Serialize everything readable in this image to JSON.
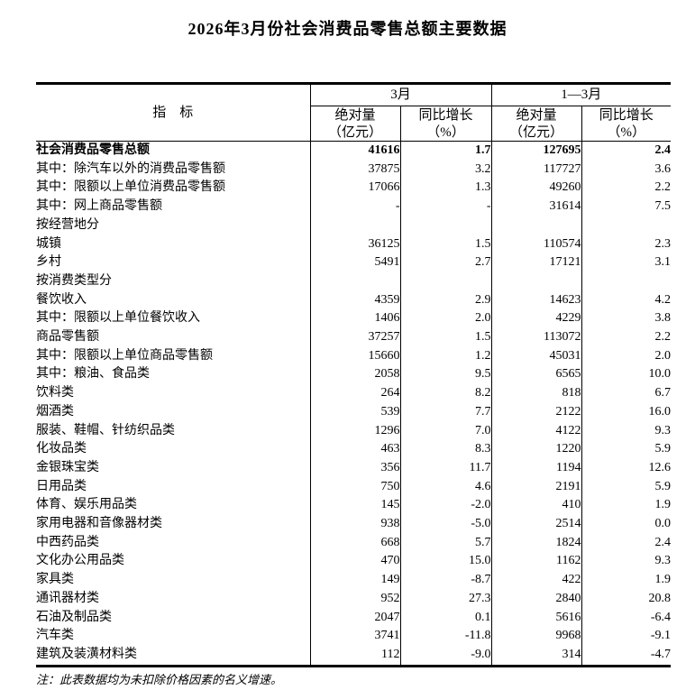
{
  "title": "2026年3月份社会消费品零售总额主要数据",
  "note": "注：此表数据均为未扣除价格因素的名义增速。",
  "table": {
    "header": {
      "indicator": "指　标",
      "march": "3月",
      "jan_mar": "1—3月",
      "abs_label": "绝对量",
      "abs_unit": "（亿元）",
      "yoy_label": "同比增长",
      "yoy_unit": "（%）"
    },
    "rows": [
      {
        "label": "社会消费品零售总额",
        "indent": 0,
        "bold": true,
        "m_abs": "41616",
        "m_yoy": "1.7",
        "q_abs": "127695",
        "q_yoy": "2.4"
      },
      {
        "label": "其中：除汽车以外的消费品零售额",
        "indent": 1,
        "bold": false,
        "m_abs": "37875",
        "m_yoy": "3.2",
        "q_abs": "117727",
        "q_yoy": "3.6"
      },
      {
        "label": "其中：限额以上单位消费品零售额",
        "indent": 1,
        "bold": false,
        "m_abs": "17066",
        "m_yoy": "1.3",
        "q_abs": "49260",
        "q_yoy": "2.2"
      },
      {
        "label": "其中：网上商品零售额",
        "indent": 1,
        "bold": false,
        "m_abs": "-",
        "m_yoy": "-",
        "q_abs": "31614",
        "q_yoy": "7.5"
      },
      {
        "label": "按经营地分",
        "indent": 0,
        "bold": false,
        "m_abs": "",
        "m_yoy": "",
        "q_abs": "",
        "q_yoy": ""
      },
      {
        "label": "城镇",
        "indent": 1,
        "bold": false,
        "m_abs": "36125",
        "m_yoy": "1.5",
        "q_abs": "110574",
        "q_yoy": "2.3"
      },
      {
        "label": "乡村",
        "indent": 1,
        "bold": false,
        "m_abs": "5491",
        "m_yoy": "2.7",
        "q_abs": "17121",
        "q_yoy": "3.1"
      },
      {
        "label": "按消费类型分",
        "indent": 0,
        "bold": false,
        "m_abs": "",
        "m_yoy": "",
        "q_abs": "",
        "q_yoy": ""
      },
      {
        "label": "餐饮收入",
        "indent": 1,
        "bold": false,
        "m_abs": "4359",
        "m_yoy": "2.9",
        "q_abs": "14623",
        "q_yoy": "4.2"
      },
      {
        "label": "其中：限额以上单位餐饮收入",
        "indent": 2,
        "bold": false,
        "m_abs": "1406",
        "m_yoy": "2.0",
        "q_abs": "4229",
        "q_yoy": "3.8"
      },
      {
        "label": "商品零售额",
        "indent": 1,
        "bold": false,
        "m_abs": "37257",
        "m_yoy": "1.5",
        "q_abs": "113072",
        "q_yoy": "2.2"
      },
      {
        "label": "其中：限额以上单位商品零售额",
        "indent": 2,
        "bold": false,
        "m_abs": "15660",
        "m_yoy": "1.2",
        "q_abs": "45031",
        "q_yoy": "2.0"
      },
      {
        "label": "其中：粮油、食品类",
        "indent": 3,
        "bold": false,
        "m_abs": "2058",
        "m_yoy": "9.5",
        "q_abs": "6565",
        "q_yoy": "10.0"
      },
      {
        "label": "饮料类",
        "indent": 4,
        "bold": false,
        "m_abs": "264",
        "m_yoy": "8.2",
        "q_abs": "818",
        "q_yoy": "6.7"
      },
      {
        "label": "烟酒类",
        "indent": 4,
        "bold": false,
        "m_abs": "539",
        "m_yoy": "7.7",
        "q_abs": "2122",
        "q_yoy": "16.0"
      },
      {
        "label": "服装、鞋帽、针纺织品类",
        "indent": 4,
        "bold": false,
        "m_abs": "1296",
        "m_yoy": "7.0",
        "q_abs": "4122",
        "q_yoy": "9.3"
      },
      {
        "label": "化妆品类",
        "indent": 4,
        "bold": false,
        "m_abs": "463",
        "m_yoy": "8.3",
        "q_abs": "1220",
        "q_yoy": "5.9"
      },
      {
        "label": "金银珠宝类",
        "indent": 4,
        "bold": false,
        "m_abs": "356",
        "m_yoy": "11.7",
        "q_abs": "1194",
        "q_yoy": "12.6"
      },
      {
        "label": "日用品类",
        "indent": 4,
        "bold": false,
        "m_abs": "750",
        "m_yoy": "4.6",
        "q_abs": "2191",
        "q_yoy": "5.9"
      },
      {
        "label": "体育、娱乐用品类",
        "indent": 4,
        "bold": false,
        "m_abs": "145",
        "m_yoy": "-2.0",
        "q_abs": "410",
        "q_yoy": "1.9"
      },
      {
        "label": "家用电器和音像器材类",
        "indent": 4,
        "bold": false,
        "m_abs": "938",
        "m_yoy": "-5.0",
        "q_abs": "2514",
        "q_yoy": "0.0"
      },
      {
        "label": "中西药品类",
        "indent": 4,
        "bold": false,
        "m_abs": "668",
        "m_yoy": "5.7",
        "q_abs": "1824",
        "q_yoy": "2.4"
      },
      {
        "label": "文化办公用品类",
        "indent": 4,
        "bold": false,
        "m_abs": "470",
        "m_yoy": "15.0",
        "q_abs": "1162",
        "q_yoy": "9.3"
      },
      {
        "label": "家具类",
        "indent": 4,
        "bold": false,
        "m_abs": "149",
        "m_yoy": "-8.7",
        "q_abs": "422",
        "q_yoy": "1.9"
      },
      {
        "label": "通讯器材类",
        "indent": 4,
        "bold": false,
        "m_abs": "952",
        "m_yoy": "27.3",
        "q_abs": "2840",
        "q_yoy": "20.8"
      },
      {
        "label": "石油及制品类",
        "indent": 4,
        "bold": false,
        "m_abs": "2047",
        "m_yoy": "0.1",
        "q_abs": "5616",
        "q_yoy": "-6.4"
      },
      {
        "label": "汽车类",
        "indent": 4,
        "bold": false,
        "m_abs": "3741",
        "m_yoy": "-11.8",
        "q_abs": "9968",
        "q_yoy": "-9.1"
      },
      {
        "label": "建筑及装潢材料类",
        "indent": 4,
        "bold": false,
        "m_abs": "112",
        "m_yoy": "-9.0",
        "q_abs": "314",
        "q_yoy": "-4.7"
      }
    ]
  }
}
